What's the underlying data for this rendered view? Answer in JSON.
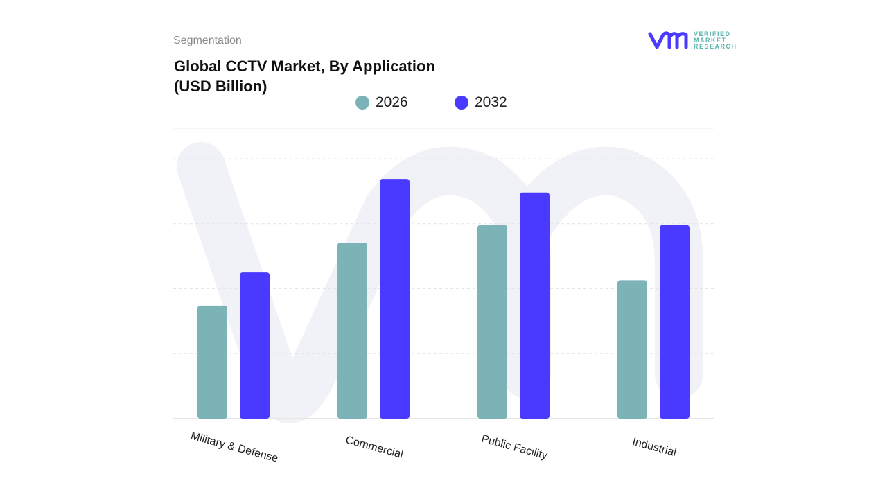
{
  "header": {
    "section": "Segmentation",
    "title_line1": "Global CCTV Market, By Application",
    "title_line2": "(USD Billion)"
  },
  "logo": {
    "lines": [
      "VERIFIED",
      "MARKET",
      "RESEARCH"
    ],
    "mark": "vmr"
  },
  "chart_data": {
    "type": "bar",
    "title": "Global CCTV Market, By Application (USD Billion)",
    "categories": [
      "Military & Defense",
      "Commercial",
      "Public Facility",
      "Industrial"
    ],
    "series": [
      {
        "name": "2026",
        "color": "#7bb3b7",
        "values": [
          1.74,
          2.71,
          2.98,
          2.13
        ]
      },
      {
        "name": "2032",
        "color": "#4a3aff",
        "values": [
          2.25,
          3.69,
          3.48,
          2.98
        ]
      }
    ],
    "ylim": [
      0,
      4
    ],
    "y_tick_labels_shown": false,
    "grid": true,
    "legend_position": "top"
  }
}
